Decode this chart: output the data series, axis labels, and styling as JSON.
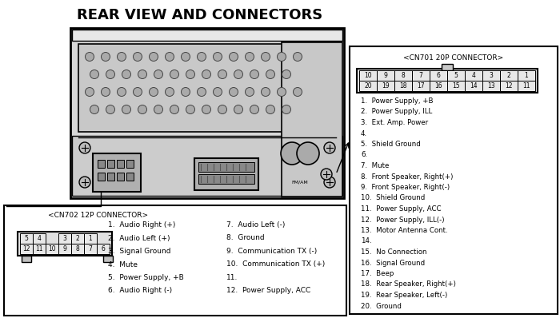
{
  "title": "REAR VIEW AND CONNECTORS",
  "bg_color": "#ffffff",
  "title_fontsize": 13,
  "cn701_label": "<CN701 20P CONNECTOR>",
  "cn701_pins_top": [
    "10",
    "9",
    "8",
    "7",
    "6",
    "5",
    "4",
    "3",
    "2",
    "1"
  ],
  "cn701_pins_bot": [
    "20",
    "19",
    "18",
    "17",
    "16",
    "15",
    "14",
    "13",
    "12",
    "11"
  ],
  "cn701_items": [
    "1.  Power Supply, +B",
    "2.  Power Supply, ILL",
    "3.  Ext. Amp. Power",
    "4.",
    "5.  Shield Ground",
    "6.",
    "7.  Mute",
    "8.  Front Speaker, Right(+)",
    "9.  Front Speaker, Right(-)",
    "10.  Shield Ground",
    "11.  Power Supply, ACC",
    "12.  Power Supply, ILL(-)",
    "13.  Motor Antenna Cont.",
    "14.",
    "15.  No Connection",
    "16.  Signal Ground",
    "17.  Beep",
    "18.  Rear Speaker, Right(+)",
    "19.  Rear Speaker, Left(-)",
    "20.  Ground"
  ],
  "cn702_label": "<CN702 12P CONNECTOR>",
  "cn702_pins_top": [
    "5",
    "4",
    "",
    "3",
    "2",
    "1"
  ],
  "cn702_pins_bot": [
    "12",
    "11",
    "10",
    "9",
    "8",
    "7",
    "6"
  ],
  "cn702_col1": [
    "1.  Audio Right (+)",
    "2.  Audio Left (+)",
    "3.  Signal Ground",
    "4.  Mute",
    "5.  Power Supply, +B",
    "6.  Audio Right (-)"
  ],
  "cn702_col2": [
    "7.  Audio Left (-)",
    "8.  Ground",
    "9.  Communication TX (-)",
    "10.  Communication TX (+)",
    "11.",
    "12.  Power Supply, ACC"
  ]
}
